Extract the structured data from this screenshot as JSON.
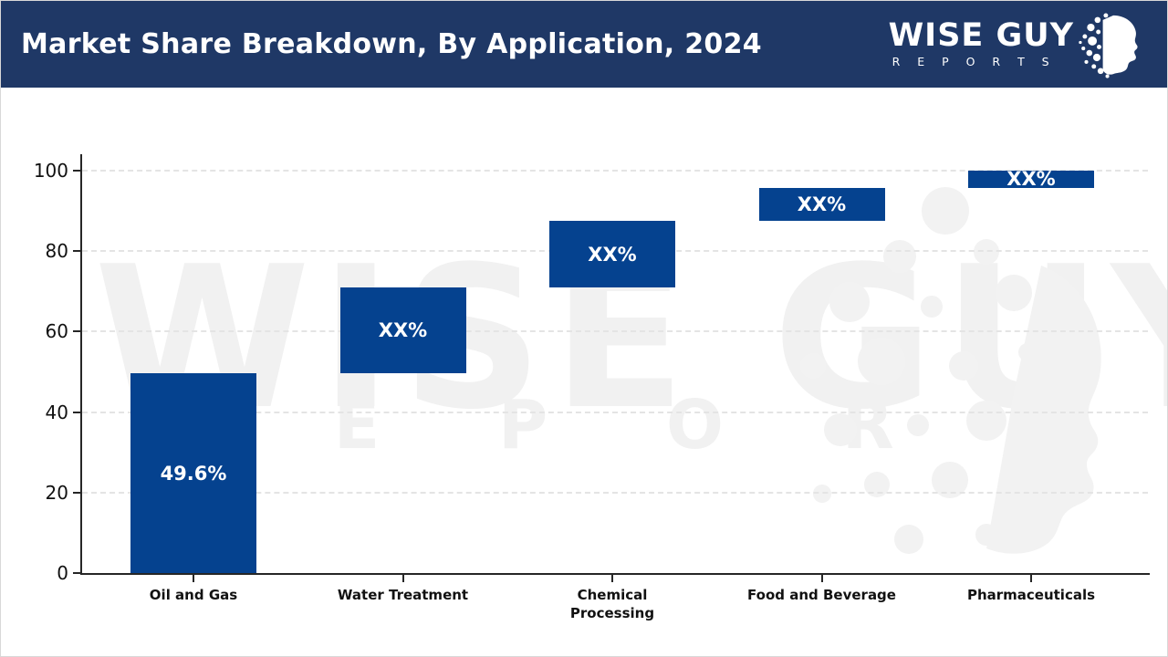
{
  "header": {
    "title": "Market Share Breakdown, By Application, 2024",
    "logo": {
      "line1": "WISE GUY",
      "line2": "R E P O R T S"
    }
  },
  "watermark": {
    "line1": "WISE GUY",
    "line2": "R E P O R T S"
  },
  "colors": {
    "header_bg": "#1f3866",
    "bar": "#05428f",
    "bar_label": "#ffffff",
    "axis": "#262626",
    "gridline": "#e4e4e4",
    "watermark": "#f1f1f1"
  },
  "chart_data": {
    "type": "bar",
    "subtype": "floating-waterfall",
    "title": "Market Share Breakdown, By Application, 2024",
    "categories": [
      "Oil and Gas",
      "Water Treatment",
      "Chemical Processing",
      "Food and Beverage",
      "Pharmaceuticals"
    ],
    "bars": [
      {
        "category": "Oil and Gas",
        "display_category": "Oil and Gas",
        "start": 0,
        "end": 49.6,
        "label": "49.6%"
      },
      {
        "category": "Water Treatment",
        "display_category": "Water Treatment",
        "start": 49.6,
        "end": 71.0,
        "label": "XX%"
      },
      {
        "category": "Chemical Processing",
        "display_category": "Chemical\nProcessing",
        "start": 71.0,
        "end": 87.5,
        "label": "XX%"
      },
      {
        "category": "Food and Beverage",
        "display_category": "Food and Beverage",
        "start": 87.5,
        "end": 95.8,
        "label": "XX%"
      },
      {
        "category": "Pharmaceuticals",
        "display_category": "Pharmaceuticals",
        "start": 95.8,
        "end": 100,
        "label": "XX%"
      }
    ],
    "yticks": [
      0,
      20,
      40,
      60,
      80,
      100
    ],
    "ylim": [
      0,
      105
    ],
    "xlabel": "",
    "ylabel": "",
    "legend": null,
    "grid": "horizontal-dashed"
  }
}
